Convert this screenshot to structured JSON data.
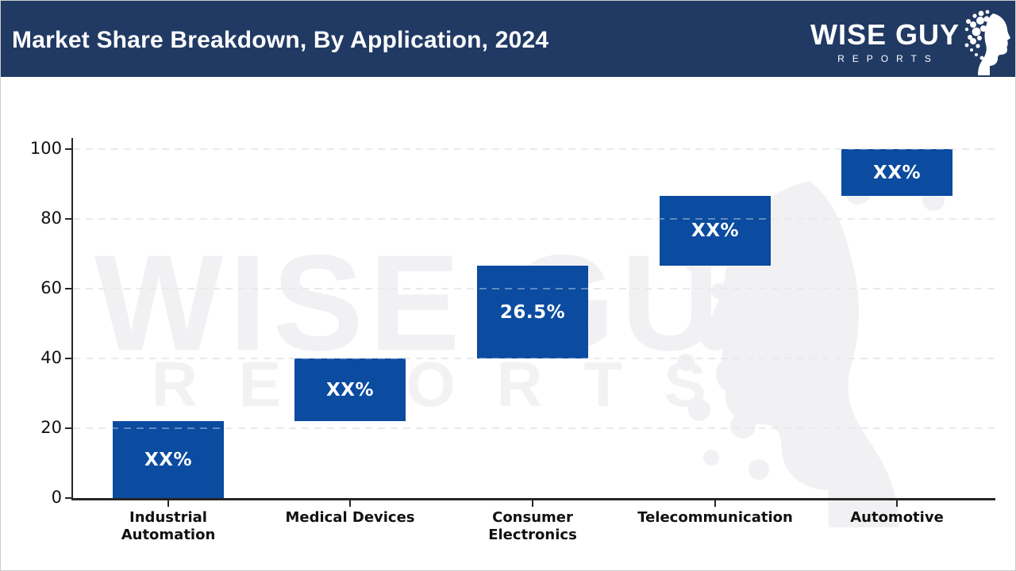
{
  "header": {
    "title": "Market Share Breakdown, By Application, 2024",
    "logo": {
      "line1": "WISE GUY",
      "line2": "REPORTS"
    }
  },
  "watermark": {
    "line1": "WISE GUY",
    "line2": "REPORTS"
  },
  "chart_data": {
    "type": "bar",
    "subtype": "waterfall",
    "title": "Market Share Breakdown, By Application, 2024",
    "categories": [
      "Industrial\nAutomation",
      "Medical Devices",
      "Consumer\nElectronics",
      "Telecommunication",
      "Automotive"
    ],
    "series": [
      {
        "name": "Market Share (%)",
        "segments": [
          {
            "category": "Industrial Automation",
            "start": 0,
            "end": 22,
            "label": "XX%"
          },
          {
            "category": "Medical Devices",
            "start": 22,
            "end": 40,
            "label": "XX%"
          },
          {
            "category": "Consumer Electronics",
            "start": 40,
            "end": 66.5,
            "label": "26.5%"
          },
          {
            "category": "Telecommunication",
            "start": 66.5,
            "end": 86.5,
            "label": "XX%"
          },
          {
            "category": "Automotive",
            "start": 86.5,
            "end": 100,
            "label": "XX%"
          }
        ]
      }
    ],
    "xlabel": "",
    "ylabel": "",
    "ylim": [
      0,
      100
    ],
    "yticks": [
      0,
      20,
      40,
      60,
      80,
      100
    ],
    "grid": "horizontal-dashed",
    "legend": "none",
    "bar_color": "#0B4BA0",
    "bar_label_color": "#ffffff",
    "axis_color": "#262626",
    "grid_color": "#dedede",
    "header_color": "#213A64",
    "watermark_color": "#f1f1f4"
  }
}
